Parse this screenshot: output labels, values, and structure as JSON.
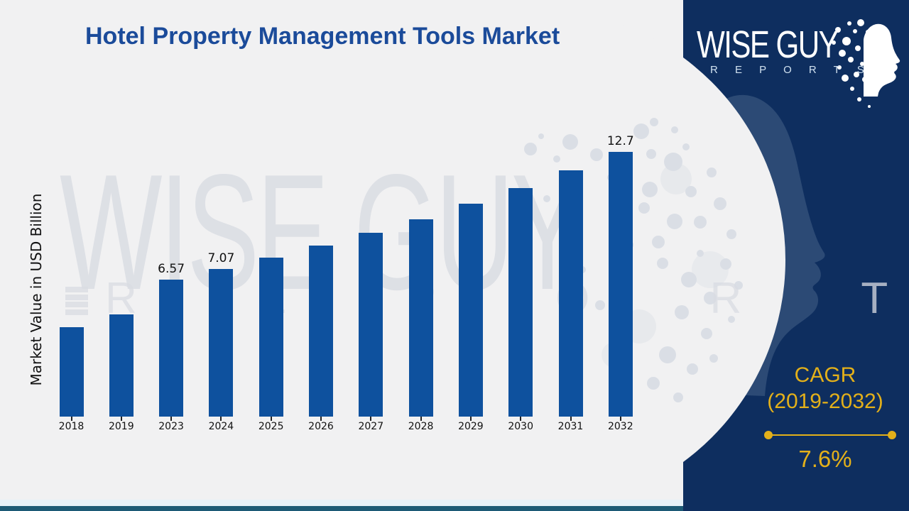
{
  "title": "Hotel Property Management Tools Market",
  "y_axis_label": "Market Value in USD Billion",
  "watermark": {
    "line1": "WISE GUY",
    "line2": "R E P O R T S"
  },
  "logo": {
    "wordmark": "WISE GUY",
    "sub": "R E P O R T S"
  },
  "cagr": {
    "label": "CAGR",
    "range": "(2019-2032)",
    "value": "7.6%"
  },
  "colors": {
    "bar": "#0e519e",
    "navy": "#0e2e5f",
    "gold": "#e3b01a",
    "title_blue": "#1b4b9a",
    "teal": "#1d5a76",
    "face_blue": "#2c4a75",
    "background": "#f1f1f2"
  },
  "chart_data": {
    "type": "bar",
    "categories": [
      "2018",
      "2019",
      "2023",
      "2024",
      "2025",
      "2026",
      "2027",
      "2028",
      "2029",
      "2030",
      "2031",
      "2032"
    ],
    "values": [
      4.3,
      4.91,
      6.57,
      7.07,
      7.61,
      8.19,
      8.81,
      9.48,
      10.2,
      10.97,
      11.8,
      12.7
    ],
    "data_labels": [
      "",
      "",
      "6.57",
      "7.07",
      "",
      "",
      "",
      "",
      "",
      "",
      "",
      "12.7"
    ],
    "title": "Hotel Property Management Tools Market",
    "xlabel": "",
    "ylabel": "Market Value in USD Billion",
    "ylim": [
      0,
      14
    ],
    "grid": false,
    "legend": null,
    "bar_color": "#0e519e"
  }
}
